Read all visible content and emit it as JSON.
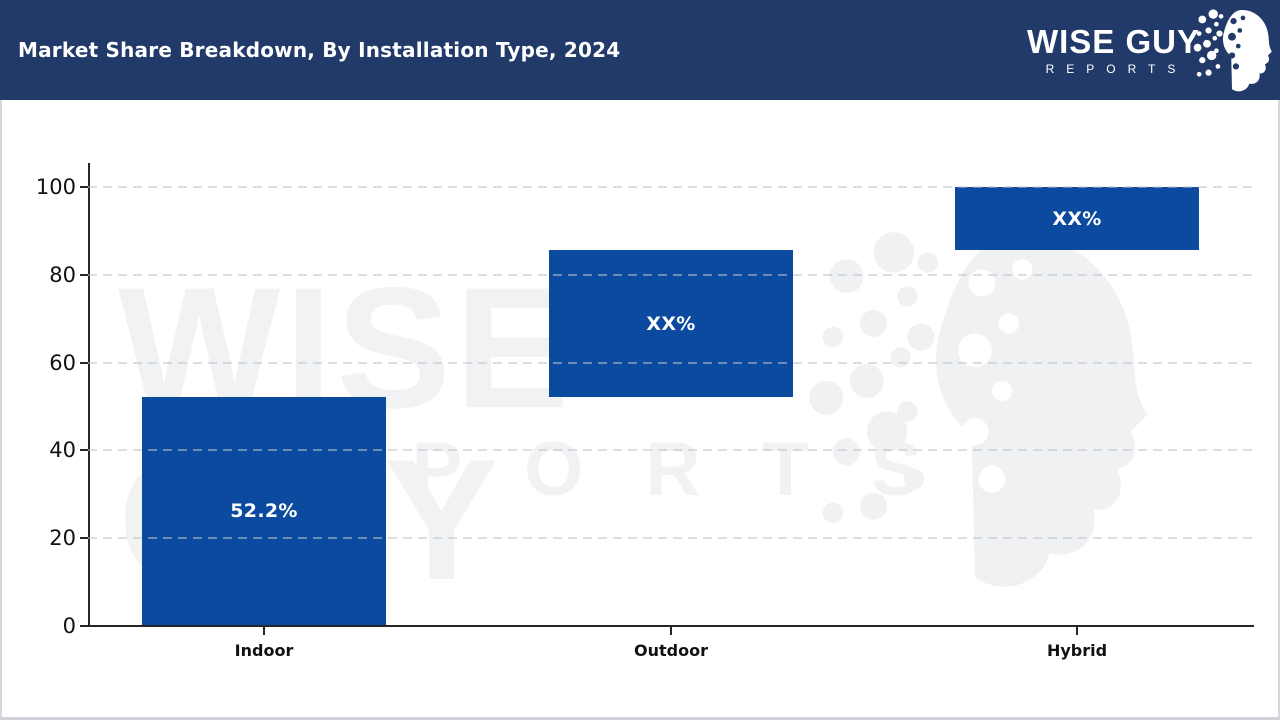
{
  "header": {
    "title": "Market Share Breakdown, By Installation Type, 2024",
    "bg_color": "#213a69",
    "logo": {
      "line1": "WISE GUY",
      "line2": "REPORTS",
      "icon": "dotted-head-profile-icon"
    }
  },
  "watermark": {
    "line1": "WISE GUY",
    "line2": "REPORTS",
    "color": "#f1f2f4",
    "icon": "dotted-head-profile-icon"
  },
  "chart_data": {
    "type": "bar",
    "subtype": "waterfall-floating-bars",
    "title": "Market Share Breakdown, By Installation Type, 2024",
    "xlabel": "",
    "ylabel": "",
    "categories": [
      "Indoor",
      "Outdoor",
      "Hybrid"
    ],
    "segments": [
      {
        "category": "Indoor",
        "start": 0,
        "end": 52.2,
        "label": "52.2%"
      },
      {
        "category": "Outdoor",
        "start": 52.2,
        "end": 85.6,
        "label": "XX%"
      },
      {
        "category": "Hybrid",
        "start": 85.6,
        "end": 100,
        "label": "XX%"
      }
    ],
    "y_ticks": [
      0,
      20,
      40,
      60,
      80,
      100
    ],
    "ylim": [
      0,
      105
    ],
    "grid": "horizontal-dashed",
    "grid_on_top_of_bars": true,
    "bar_color": "#0b4a9e",
    "bar_label_color": "#ffffff",
    "axis_color": "#262626",
    "legend": "none"
  }
}
